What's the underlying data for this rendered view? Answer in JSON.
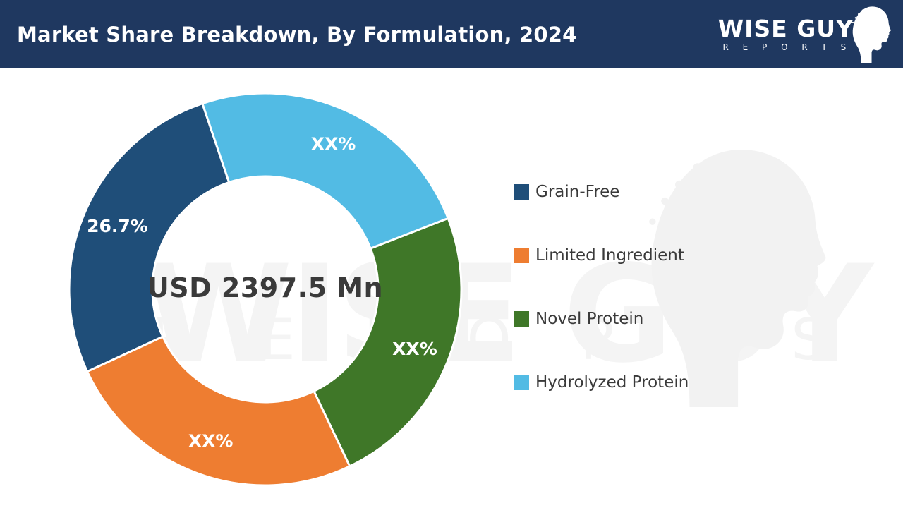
{
  "header": {
    "title": "Market Share Breakdown, By Formulation, 2024",
    "bg_color": "#1F3860",
    "logo": {
      "line1": "WISE GUY",
      "line2": "R E P O R T S"
    }
  },
  "watermark": {
    "line1": "WISE GUY",
    "line2": "R E P O R T S"
  },
  "chart_data": {
    "type": "pie",
    "subtype": "donut",
    "title": "Market Share Breakdown, By Formulation, 2024",
    "center_label": "USD 2397.5 Mn",
    "legend_position": "right",
    "start_angle_deg": 108.7,
    "direction": "counterclockwise",
    "outer_radius": 278,
    "inner_radius": 160,
    "label_radius": 228,
    "gap_stroke_color": "#ffffff",
    "segments": [
      {
        "name": "Grain-Free",
        "value_pct": 26.7,
        "label": "26.7%",
        "color": "#1F4E79"
      },
      {
        "name": "Limited Ingredient",
        "value_pct": 25.2,
        "label": "XX%",
        "color": "#EE7D31"
      },
      {
        "name": "Novel Protein",
        "value_pct": 23.8,
        "label": "XX%",
        "color": "#3F7728"
      },
      {
        "name": "Hydrolyzed Protein",
        "value_pct": 24.3,
        "label": "XX%",
        "color": "#52BBE4"
      }
    ]
  }
}
